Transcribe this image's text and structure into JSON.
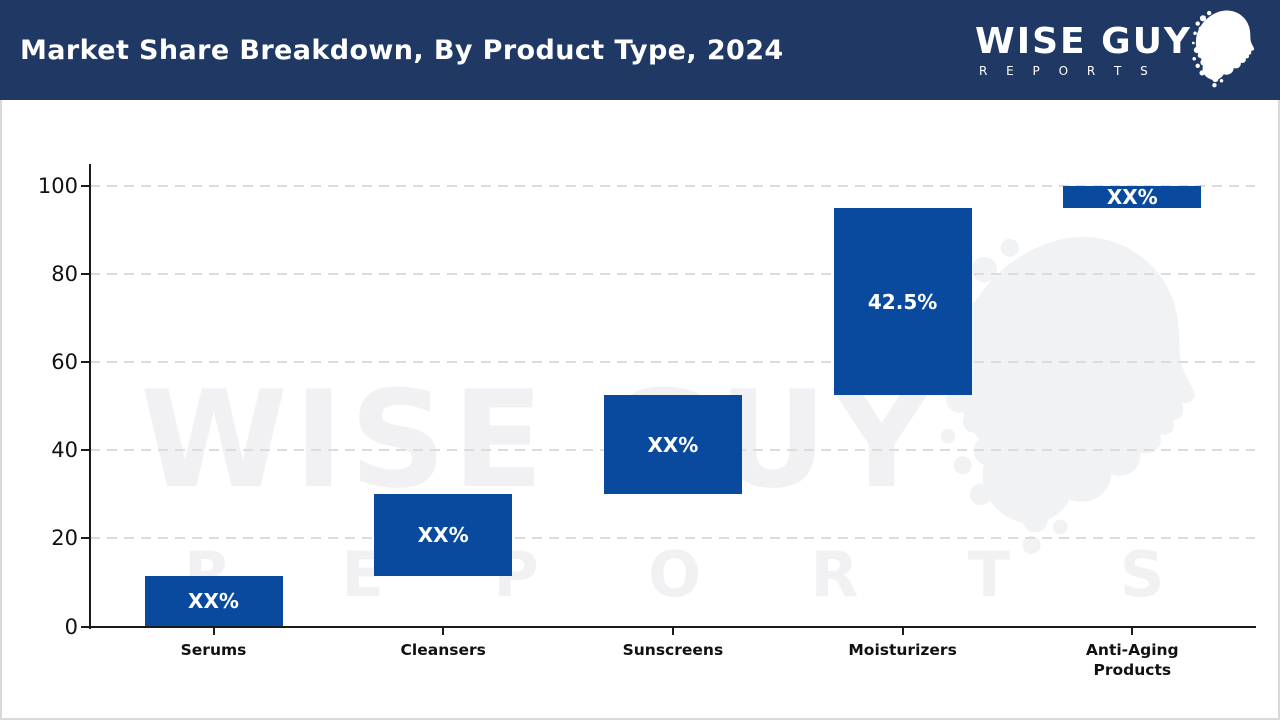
{
  "page": {
    "background": "#ffffff",
    "border_color": "#d9d9d9"
  },
  "header": {
    "bg_color": "#1f3864",
    "title": "Market Share Breakdown, By Product Type, 2024",
    "logo": {
      "brand_line1": "WISE GUY",
      "brand_line2": "R E P O R T S",
      "icon": "dotted-head-profile"
    }
  },
  "watermark": {
    "line1": "WISE GUY",
    "line2": "R E P O R T S",
    "icon": "dotted-head-profile",
    "color": "#f1f1f3"
  },
  "chart_data": {
    "type": "bar",
    "subtype": "floating-waterfall",
    "title": "Market Share Breakdown, By Product Type, 2024",
    "xlabel": "",
    "ylabel": "",
    "ylim": [
      0,
      107
    ],
    "yticks": [
      0,
      20,
      40,
      60,
      80,
      100
    ],
    "grid": "horizontal-dashed",
    "legend": "none",
    "bar_color": "#0a4a9e",
    "bar_label_color": "#ffffff",
    "axis_color": "#1a1a1a",
    "gridline_color": "#dcdcdc",
    "categories": [
      "Serums",
      "Cleansers",
      "Sunscreens",
      "Moisturizers",
      "Anti-Aging Products"
    ],
    "bars": [
      {
        "category": "Serums",
        "start": 0,
        "end": 11.5,
        "label": "XX%"
      },
      {
        "category": "Cleansers",
        "start": 11.5,
        "end": 30,
        "label": "XX%"
      },
      {
        "category": "Sunscreens",
        "start": 30,
        "end": 52.5,
        "label": "XX%"
      },
      {
        "category": "Moisturizers",
        "start": 52.5,
        "end": 95,
        "label": "42.5%"
      },
      {
        "category": "Anti-Aging Products",
        "start": 95,
        "end": 100,
        "label": "XX%"
      }
    ]
  }
}
